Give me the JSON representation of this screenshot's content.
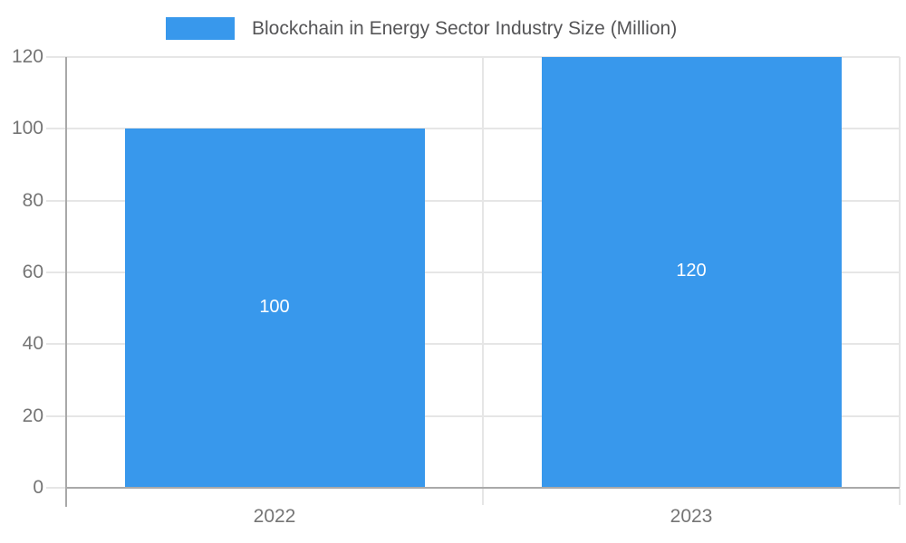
{
  "chart_data": {
    "type": "bar",
    "title": "Blockchain in Energy Sector Industry Size (Million)",
    "legend_label": "Blockchain in Energy Sector Industry Size (Million)",
    "legend_position": "top",
    "categories": [
      "2022",
      "2023"
    ],
    "series": [
      {
        "name": "Blockchain in Energy Sector Industry Size (Million)",
        "values": [
          100,
          120
        ]
      }
    ],
    "values": [
      100,
      120
    ],
    "bar_labels": [
      "100",
      "120"
    ],
    "xlabel": "",
    "ylabel": "",
    "ylim": [
      0,
      120
    ],
    "yticks": [
      0,
      20,
      40,
      60,
      80,
      100,
      120
    ],
    "grid": true,
    "colors": {
      "bar": "#3898EC",
      "bar_label": "#FFFFFF",
      "axis_line": "#A9A9A9",
      "grid_line": "#E6E6E6",
      "tick_label": "#757575",
      "legend_text": "#555557",
      "background": "#FFFFFF"
    }
  }
}
